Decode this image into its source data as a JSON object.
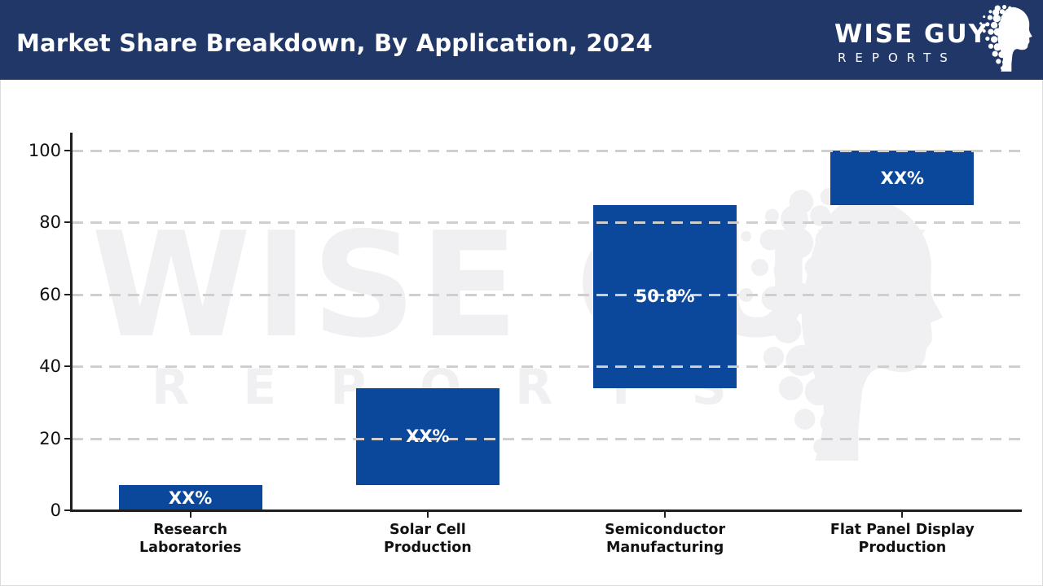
{
  "header": {
    "title": "Market Share Breakdown, By Application, 2024",
    "logo": {
      "name_line": "WISE GUY",
      "sub_line": "REPORTS"
    }
  },
  "watermark": {
    "name_line": "WISE GUY",
    "sub_line": "REPORTS"
  },
  "colors": {
    "header_bg": "#213767",
    "bar": "#0b489c",
    "bar_label": "#ffffff",
    "axis": "#1f1f1f",
    "grid": "#cfcfcf",
    "tick_text": "#111111",
    "watermark": "#f0f0f2"
  },
  "chart_data": {
    "type": "bar",
    "variant": "waterfall-floating-segments",
    "title": "Market Share Breakdown, By Application, 2024",
    "categories": [
      "Research Laboratories",
      "Solar Cell Production",
      "Semiconductor Manufacturing",
      "Flat Panel Display Production"
    ],
    "category_lines": [
      [
        "Research",
        "Laboratories"
      ],
      [
        "Solar Cell",
        "Production"
      ],
      [
        "Semiconductor",
        "Manufacturing"
      ],
      [
        "Flat Panel Display",
        "Production"
      ]
    ],
    "segments": [
      {
        "category": "Research Laboratories",
        "start": 0,
        "end": 7,
        "label": "XX%"
      },
      {
        "category": "Solar Cell Production",
        "start": 7,
        "end": 34,
        "label": "XX%"
      },
      {
        "category": "Semiconductor Manufacturing",
        "start": 34,
        "end": 84.8,
        "label": "50.8%"
      },
      {
        "category": "Flat Panel Display Production",
        "start": 84.8,
        "end": 100,
        "label": "XX%"
      }
    ],
    "yticks": [
      0,
      20,
      40,
      60,
      80,
      100
    ],
    "ylim": [
      0,
      105
    ],
    "xlabel": "",
    "ylabel": "",
    "grid": "horizontal dashed gridlines drawn over bars",
    "legend": false,
    "notes": "Values masked as XX% except Semiconductor Manufacturing = 50.8%"
  }
}
